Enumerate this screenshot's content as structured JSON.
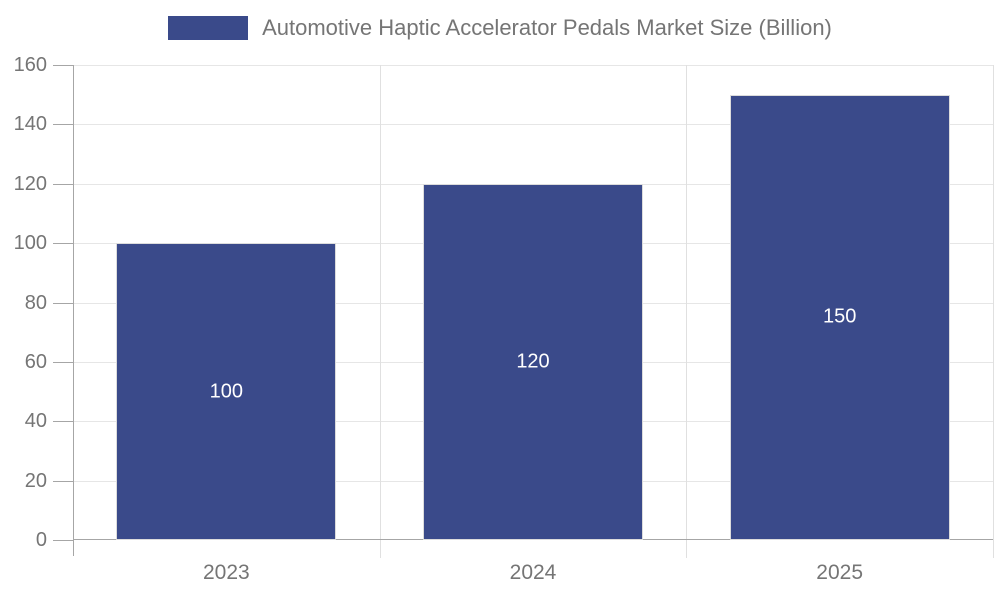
{
  "chart_data": {
    "type": "bar",
    "title": "Automotive Haptic Accelerator Pedals Market Size (Billion)",
    "categories": [
      "2023",
      "2024",
      "2025"
    ],
    "series": [
      {
        "name": "Automotive Haptic Accelerator Pedals Market Size (Billion)",
        "values": [
          100,
          120,
          150
        ]
      }
    ],
    "values": [
      100,
      120,
      150
    ],
    "data_labels": [
      "100",
      "120",
      "150"
    ],
    "xlabel": "",
    "ylabel": "",
    "ylim": [
      0,
      160
    ],
    "yticks": [
      0,
      20,
      40,
      60,
      80,
      100,
      120,
      140,
      160
    ],
    "grid": true,
    "legend_position": "top",
    "colors": {
      "bar": "#3A4A8A",
      "bar_border": "#DCDCDC",
      "axis_line": "#A6A6A6",
      "gridline_h": "#E6E6E6",
      "gridline_v": "#E0E0E0",
      "tick_text": "#757575",
      "title_text": "#757575",
      "data_label_text": "#FFFFFF",
      "background": "#FFFFFF"
    }
  }
}
